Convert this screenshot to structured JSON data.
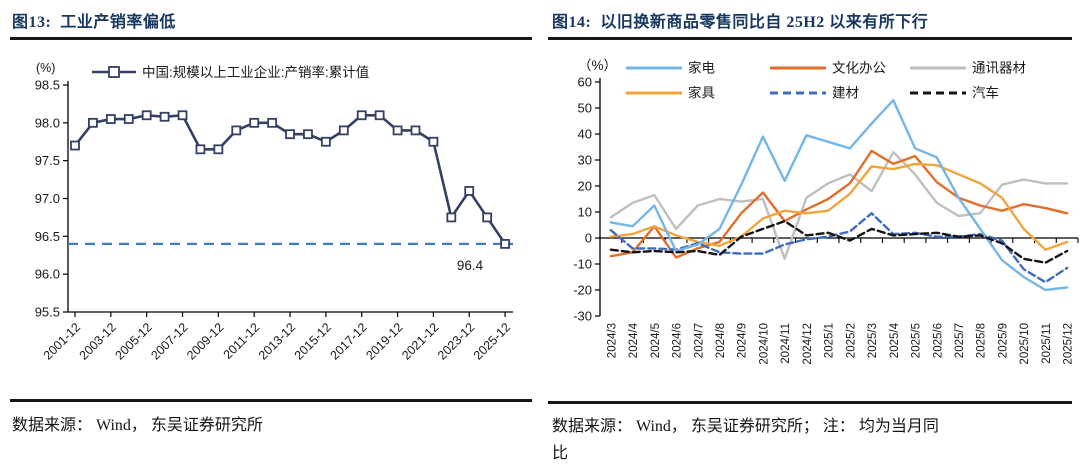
{
  "page": {
    "background": "#ffffff"
  },
  "figures": {
    "fig13": {
      "title": "图13:  工业产销率偏低",
      "source": "数据来源： Wind， 东吴证券研究所"
    },
    "fig14": {
      "title": "图14:  以旧换新商品零售同比自 25H2 以来有所下行",
      "source": "数据来源： Wind， 东吴证券研究所； 注： 均为当月同比"
    }
  },
  "chart_data": [
    {
      "id": "fig13",
      "type": "line",
      "title": "工业产销率偏低",
      "unit_label": "(%)",
      "legend": [
        "中国:规模以上工业企业:产销率:累计值"
      ],
      "series_color": "#333f63",
      "marker": "square-white",
      "ylim": [
        95.5,
        98.5
      ],
      "ytick_labels": [
        "98.5",
        "98.0",
        "97.5",
        "97.0",
        "96.5",
        "96.0",
        "95.5"
      ],
      "xtick_labels": [
        "2001-12",
        "2003-12",
        "2005-12",
        "2007-12",
        "2009-12",
        "2011-12",
        "2013-12",
        "2015-12",
        "2017-12",
        "2019-12",
        "2021-12",
        "2023-12",
        "2025-12"
      ],
      "xtick_every": 2,
      "x": [
        "2001-12",
        "2002-12",
        "2003-12",
        "2004-12",
        "2005-12",
        "2006-12",
        "2007-12",
        "2008-12",
        "2009-12",
        "2010-12",
        "2011-12",
        "2012-12",
        "2013-12",
        "2014-12",
        "2015-12",
        "2016-12",
        "2017-12",
        "2018-12",
        "2019-12",
        "2020-12",
        "2021-12",
        "2022-12",
        "2023-12",
        "2024-12",
        "2025-12"
      ],
      "values": [
        97.7,
        98.0,
        98.05,
        98.05,
        98.1,
        98.08,
        98.1,
        97.65,
        97.65,
        97.9,
        98.0,
        98.0,
        97.85,
        97.85,
        97.75,
        97.9,
        98.1,
        98.1,
        97.9,
        97.9,
        97.75,
        96.75,
        97.1,
        96.75,
        96.4
      ],
      "refline": {
        "value": 96.4,
        "label": "96.4",
        "color": "#4579c4",
        "style": "dashed"
      }
    },
    {
      "id": "fig14",
      "type": "line",
      "title": "以旧换新商品零售同比自 25H2 以来有所下行",
      "unit_label": "（%）",
      "note": "均为当月同比",
      "ylim": [
        -30,
        60
      ],
      "ytick_labels": [
        "60",
        "50",
        "40",
        "30",
        "20",
        "10",
        "0",
        "-10",
        "-20",
        "-30"
      ],
      "categories": [
        "2024/3",
        "2024/4",
        "2024/5",
        "2024/6",
        "2024/7",
        "2024/8",
        "2024/9",
        "2024/10",
        "2024/11",
        "2024/12",
        "2025/1",
        "2025/2",
        "2025/3",
        "2025/4",
        "2025/5",
        "2025/6",
        "2025/7",
        "2025/8",
        "2025/9",
        "2025/10",
        "2025/11",
        "2025/12"
      ],
      "legend_rows": [
        [
          "家电",
          "文化办公",
          "通讯器材"
        ],
        [
          "家具",
          "建材",
          "汽车"
        ]
      ],
      "series": [
        {
          "name": "通讯器材",
          "color": "#bfbfbf",
          "dash": "",
          "values": [
            8,
            13.5,
            16.5,
            3.5,
            12.5,
            15,
            14,
            15,
            -8,
            15.5,
            21,
            24.5,
            18,
            33,
            24.5,
            13.5,
            8.5,
            9.5,
            20.5,
            22.5,
            21,
            21
          ]
        },
        {
          "name": "文化办公",
          "color": "#e06f2b",
          "dash": "",
          "values": [
            -7,
            -5.5,
            4.5,
            -7.5,
            -4,
            -1.5,
            9.5,
            17.5,
            6.5,
            11,
            15,
            21,
            33.5,
            28.5,
            31.5,
            21.5,
            15.5,
            12.5,
            10.5,
            13,
            11.5,
            9.5
          ]
        },
        {
          "name": "家具",
          "color": "#f0a43c",
          "dash": "",
          "values": [
            0.5,
            1.5,
            4.5,
            1,
            -1.5,
            -3,
            0.5,
            7.5,
            10.5,
            9.5,
            10.5,
            17,
            27.5,
            26.5,
            28.5,
            28,
            24.5,
            21,
            15.5,
            3.5,
            -4.5,
            -1.5
          ]
        },
        {
          "name": "建材",
          "color": "#3f6cbf",
          "dash": "7 4",
          "values": [
            3,
            -4,
            -4,
            -4.5,
            -2,
            -5.5,
            -6,
            -6,
            -2.5,
            -0.5,
            0.5,
            2.5,
            9.5,
            1.5,
            2,
            0.5,
            0.5,
            1.5,
            -1,
            -12,
            -17,
            -11.5
          ]
        },
        {
          "name": "家电",
          "color": "#74b6e8",
          "dash": "",
          "values": [
            6,
            4.5,
            12.5,
            -5,
            -2.5,
            3.5,
            20.5,
            39,
            22,
            39.5,
            37,
            34.5,
            44,
            53,
            34.5,
            31,
            15.5,
            3.5,
            -8.5,
            -15,
            -20,
            -19
          ]
        },
        {
          "name": "汽车",
          "color": "#141414",
          "dash": "7 4",
          "values": [
            -4.5,
            -5.5,
            -5,
            -5.5,
            -5,
            -6.5,
            0.5,
            3.5,
            6.5,
            1,
            2,
            -1,
            3.5,
            1,
            1.5,
            2,
            0.5,
            1,
            -2,
            -8,
            -9.5,
            -5
          ]
        }
      ]
    }
  ]
}
